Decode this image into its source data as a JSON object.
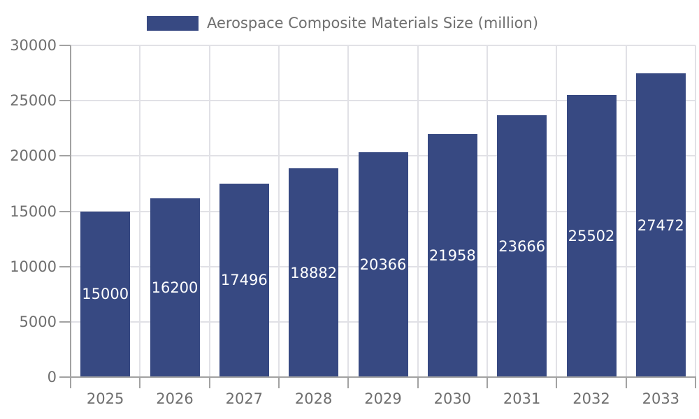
{
  "chart_data": {
    "type": "bar",
    "title": "Aerospace Composite Materials Size (million)",
    "legend": [
      "Aerospace Composite Materials Size (million)"
    ],
    "legend_position": "top",
    "categories": [
      "2025",
      "2026",
      "2027",
      "2028",
      "2029",
      "2030",
      "2031",
      "2032",
      "2033"
    ],
    "series": [
      {
        "name": "Aerospace Composite Materials Size (million)",
        "values": [
          15000,
          16200,
          17496,
          18882,
          20366,
          21958,
          23666,
          25502,
          27472
        ]
      }
    ],
    "xlabel": "",
    "ylabel": "",
    "ylim": [
      0,
      30000
    ],
    "yticks": [
      0,
      5000,
      10000,
      15000,
      20000,
      25000,
      30000
    ],
    "grid": true,
    "bar_labels_inside": true,
    "colors": {
      "bar": "#374982",
      "grid": "#e1e1e6",
      "axis": "#a2a2a2",
      "text": "#6f6f6f",
      "bar_label": "#ffffff",
      "background": "#ffffff"
    }
  }
}
